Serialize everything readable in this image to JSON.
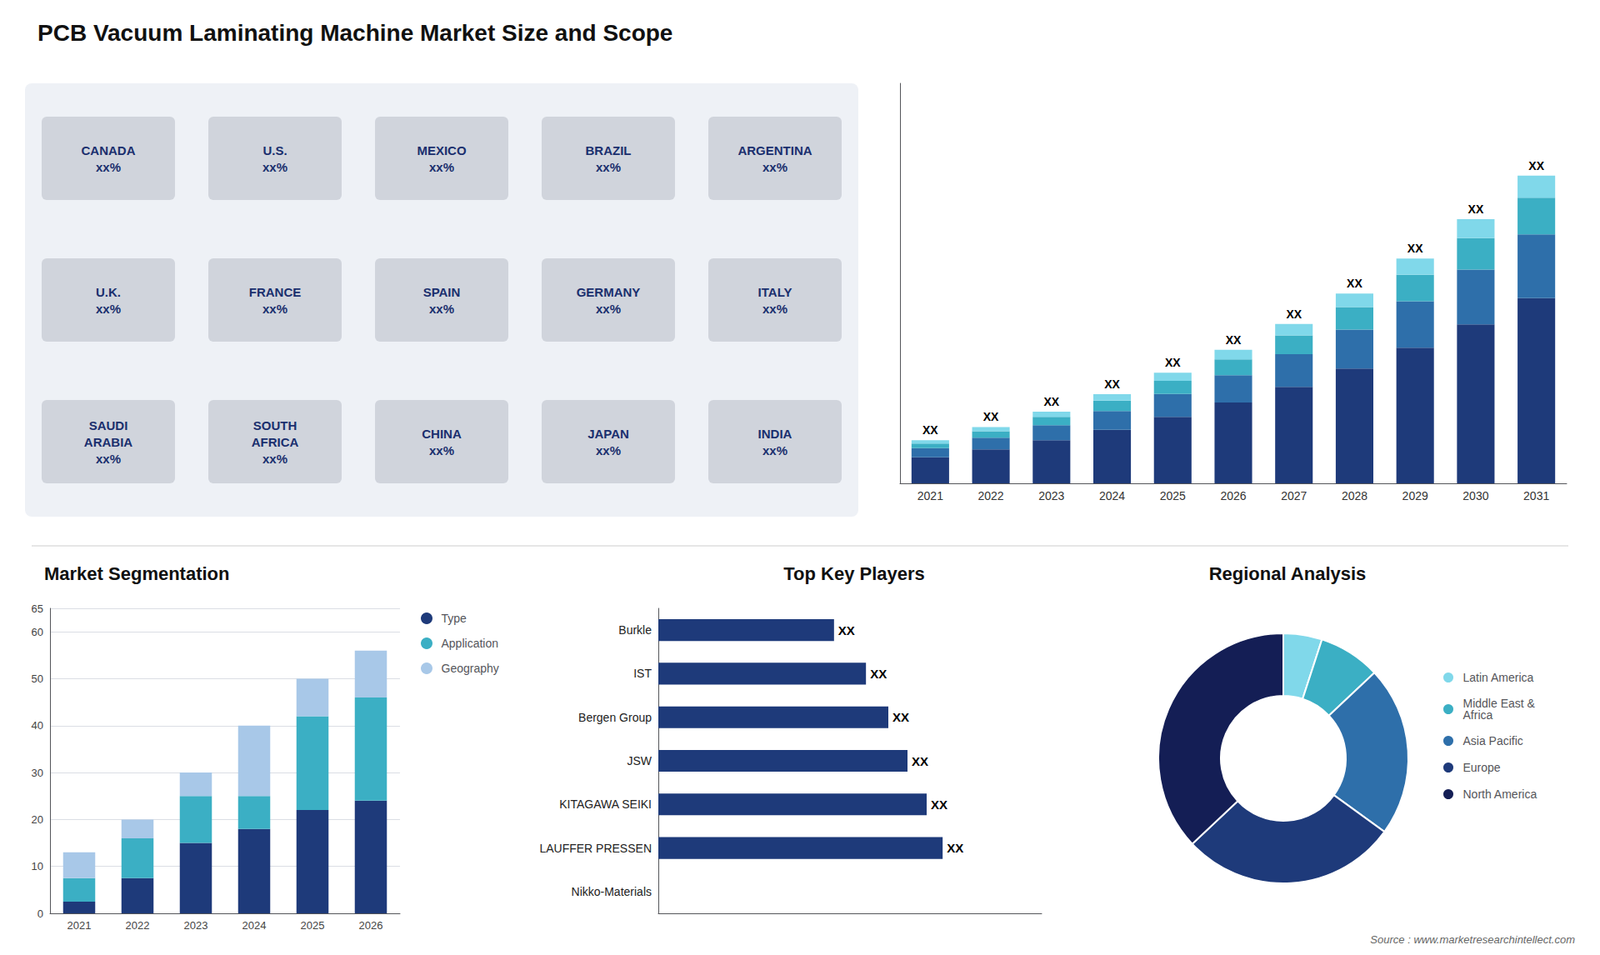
{
  "chart_data": [
    {
      "type": "map",
      "title": "PCB Vacuum Laminating Machine Market Size and Scope",
      "annotations": [
        "CANADA\nxx%",
        "U.S.\nxx%",
        "MEXICO\nxx%",
        "BRAZIL\nxx%",
        "ARGENTINA\nxx%",
        "U.K.\nxx%",
        "FRANCE\nxx%",
        "SPAIN\nxx%",
        "GERMANY\nxx%",
        "ITALY\nxx%",
        "SAUDI\nARABIA\nxx%",
        "SOUTH\nAFRICA\nxx%",
        "CHINA\nxx%",
        "JAPAN\nxx%",
        "INDIA\nxx%"
      ]
    },
    {
      "type": "bar",
      "stacked": true,
      "categories": [
        "2021",
        "2022",
        "2023",
        "2024",
        "2025",
        "2026",
        "2027",
        "2028",
        "2029",
        "2030",
        "2031"
      ],
      "series": [
        {
          "color": "#1e3a7a",
          "values": [
            1.0,
            1.3,
            1.65,
            2.05,
            2.55,
            3.1,
            3.7,
            4.4,
            5.2,
            6.1,
            7.1
          ]
        },
        {
          "color": "#2e6faa",
          "values": [
            0.35,
            0.45,
            0.58,
            0.72,
            0.88,
            1.05,
            1.25,
            1.5,
            1.78,
            2.1,
            2.45
          ]
        },
        {
          "color": "#3bafc4",
          "values": [
            0.18,
            0.25,
            0.32,
            0.4,
            0.5,
            0.6,
            0.72,
            0.86,
            1.02,
            1.2,
            1.4
          ]
        },
        {
          "color": "#80d8ea",
          "values": [
            0.12,
            0.16,
            0.2,
            0.25,
            0.31,
            0.37,
            0.44,
            0.52,
            0.62,
            0.73,
            0.85
          ]
        }
      ],
      "annotations": [
        "XX",
        "XX",
        "XX",
        "XX",
        "XX",
        "XX",
        "XX",
        "XX",
        "XX",
        "XX",
        "XX"
      ],
      "ylim": [
        0,
        15.34
      ],
      "tick_labels": "x"
    },
    {
      "type": "bar",
      "title": "Market Segmentation",
      "stacked": true,
      "categories": [
        "2021",
        "2022",
        "2023",
        "2024",
        "2025",
        "2026"
      ],
      "series": [
        {
          "name": "Type",
          "color": "#1e3a7a",
          "values": [
            2.5,
            7.5,
            15.0,
            18.0,
            22.0,
            24.0
          ]
        },
        {
          "name": "Application",
          "color": "#3bafc4",
          "values": [
            5.0,
            8.5,
            10.0,
            7.0,
            20.0,
            22.0
          ]
        },
        {
          "name": "Geography",
          "color": "#a8c8e8",
          "values": [
            5.5,
            4.0,
            5.0,
            15.0,
            8.0,
            10.0
          ]
        }
      ],
      "ylim": [
        0,
        65
      ],
      "yticks": [
        0,
        10,
        20,
        30,
        40,
        50,
        60
      ],
      "grid": true,
      "legend": "right"
    },
    {
      "type": "bar",
      "title": "Top Key Players",
      "orientation": "horizontal",
      "categories": [
        "Nikko-Materials",
        "LAUFFER PRESSEN",
        "KITAGAWA SEIKI",
        "JSW",
        "Bergen Group",
        "IST",
        "Burkle"
      ],
      "values": [
        0,
        8.9,
        8.4,
        7.8,
        7.2,
        6.5,
        5.5
      ],
      "color": "#1e3a7a",
      "data_labels": true,
      "value_labels": [
        null,
        "XX",
        "XX",
        "XX",
        "XX",
        "XX",
        "XX"
      ],
      "xlim": [
        0,
        12
      ],
      "tick_labels": "y"
    },
    {
      "type": "pie",
      "title": "Regional Analysis",
      "categories": [
        "Latin America",
        "Middle East &\nAfrica",
        "Asia Pacific",
        "Europe",
        "North America"
      ],
      "values": [
        5,
        8,
        22,
        28,
        37
      ],
      "colors": [
        "#80d8ea",
        "#3bafc4",
        "#2e6faa",
        "#1e3a7a",
        "#141e55"
      ],
      "legend": "right",
      "annotations": [
        "Source : www.marketresearchintellect.com"
      ]
    }
  ]
}
